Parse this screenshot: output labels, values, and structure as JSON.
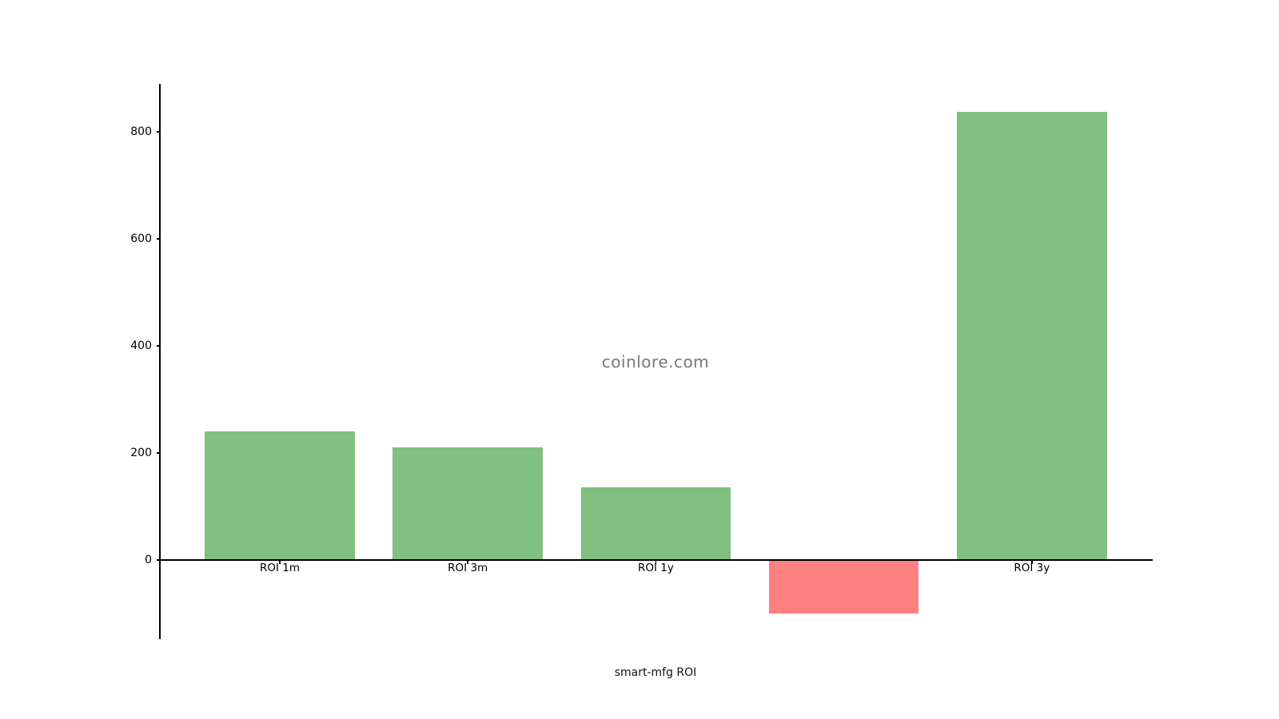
{
  "watermark": "coinlore.com",
  "colors": {
    "positive_bar": "#80c080",
    "negative_bar": "#ff8080",
    "axis": "#000000",
    "watermark_text": "#777777"
  },
  "chart_data": {
    "type": "bar",
    "title": "",
    "xlabel": "smart-mfg ROI",
    "ylabel": "",
    "categories": [
      "ROI 1m",
      "ROI 3m",
      "ROI 1y",
      "",
      "ROI 3y"
    ],
    "values": [
      240,
      210,
      136,
      -100,
      838
    ],
    "bar_colors": [
      "#80c080",
      "#80c080",
      "#80c080",
      "#ff8080",
      "#80c080"
    ],
    "y_ticks": [
      0,
      200,
      400,
      600,
      800
    ],
    "ylim": [
      -150,
      890
    ],
    "grid": false,
    "legend_position": "none"
  }
}
